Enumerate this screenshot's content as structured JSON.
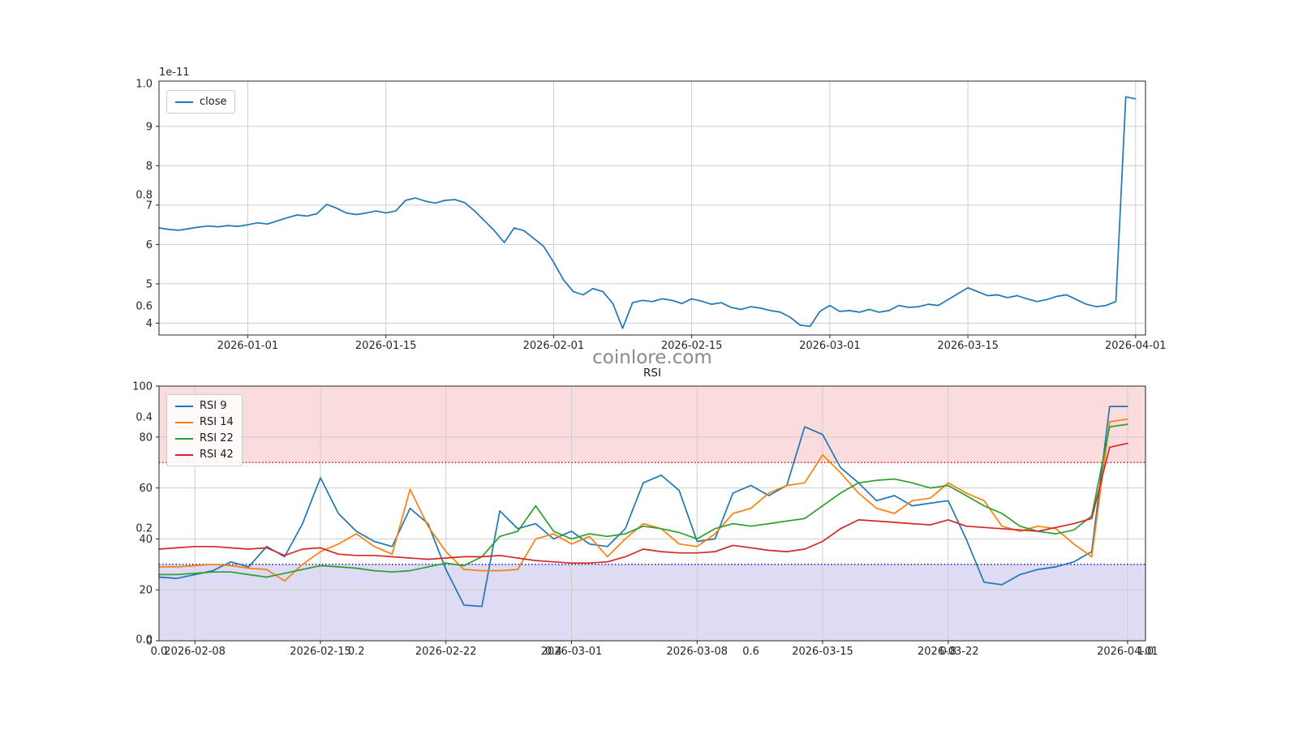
{
  "watermark": "coinlore.com",
  "colors": {
    "blue": "#1f77b4",
    "orange": "#ff7f0e",
    "green": "#2ca02c",
    "red": "#d62728",
    "grid": "#cdcdcd",
    "overbought_band": "#fbdcdc",
    "oversold_band": "#dddcf4",
    "hline_red": "#c00000",
    "hline_blue": "#0000b8"
  },
  "overlay_axis": {
    "y_tick_labels": [
      "0.0",
      "0.2",
      "0.4",
      "0.6",
      "0.8",
      "1.0"
    ],
    "x_tick_labels": [
      "0.0",
      "0.2",
      "0.4",
      "0.6",
      "0.8",
      "1.0"
    ]
  },
  "chart_data": [
    {
      "type": "line",
      "title": "",
      "offset_text": "1e-11",
      "x_range": [
        "2025-12-23",
        "2026-04-02"
      ],
      "y_range": [
        3.7,
        10.15
      ],
      "x_ticks": [
        "2026-01-01",
        "2026-01-15",
        "2026-02-01",
        "2026-02-15",
        "2026-03-01",
        "2026-03-15",
        "2026-04-01"
      ],
      "y_ticks": [
        9,
        8,
        7,
        6,
        5,
        4
      ],
      "ylabel": "",
      "xlabel": "",
      "grid": true,
      "legend_position": "upper left",
      "series": [
        {
          "name": "close",
          "color": "blue",
          "start": "2025-12-23",
          "step_days": 1,
          "unit": "1e-11",
          "values": [
            6.42,
            6.38,
            6.36,
            6.4,
            6.44,
            6.47,
            6.45,
            6.48,
            6.46,
            6.5,
            6.55,
            6.52,
            6.6,
            6.68,
            6.75,
            6.72,
            6.78,
            7.02,
            6.92,
            6.8,
            6.76,
            6.8,
            6.85,
            6.8,
            6.85,
            7.12,
            7.18,
            7.1,
            7.05,
            7.12,
            7.14,
            7.06,
            6.85,
            6.6,
            6.35,
            6.05,
            6.42,
            6.35,
            6.15,
            5.95,
            5.55,
            5.1,
            4.8,
            4.72,
            4.88,
            4.8,
            4.5,
            3.87,
            4.52,
            4.58,
            4.55,
            4.62,
            4.58,
            4.5,
            4.62,
            4.56,
            4.48,
            4.52,
            4.4,
            4.35,
            4.42,
            4.38,
            4.32,
            4.28,
            4.15,
            3.95,
            3.92,
            4.3,
            4.45,
            4.3,
            4.32,
            4.28,
            4.35,
            4.28,
            4.32,
            4.45,
            4.4,
            4.42,
            4.48,
            4.45,
            4.6,
            4.75,
            4.9,
            4.8,
            4.7,
            4.72,
            4.65,
            4.7,
            4.62,
            4.55,
            4.6,
            4.68,
            4.72,
            4.6,
            4.48,
            4.42,
            4.45,
            4.55,
            9.75,
            9.7
          ]
        }
      ]
    },
    {
      "type": "line",
      "title": "RSI",
      "x_range": [
        "2026-02-06",
        "2026-04-02"
      ],
      "y_range": [
        0,
        100
      ],
      "x_ticks": [
        "2026-02-08",
        "2026-02-15",
        "2026-02-22",
        "2026-03-01",
        "2026-03-08",
        "2026-03-15",
        "2026-03-22",
        "2026-04-01"
      ],
      "y_ticks": [
        100,
        80,
        60,
        40,
        20,
        0
      ],
      "grid": true,
      "legend_position": "upper left",
      "bands": [
        {
          "name": "overbought",
          "from": 70,
          "to": 100,
          "color": "overbought_band"
        },
        {
          "name": "oversold",
          "from": 0,
          "to": 30,
          "color": "oversold_band"
        }
      ],
      "hlines": [
        {
          "value": 70,
          "color": "hline_red",
          "style": "dotted"
        },
        {
          "value": 30,
          "color": "hline_blue",
          "style": "dotted"
        }
      ],
      "series": [
        {
          "name": "RSI 9",
          "color": "blue",
          "start": "2026-02-06",
          "step_days": 1,
          "values": [
            25,
            24.5,
            26,
            27.5,
            31,
            29,
            37,
            33,
            46,
            64,
            50,
            43,
            39,
            37,
            52,
            46,
            28,
            14,
            13.5,
            51,
            44,
            46,
            40,
            43,
            38,
            37,
            44,
            62,
            65,
            59,
            39,
            40,
            58,
            61,
            57,
            61,
            84,
            81,
            68,
            62,
            55,
            57,
            53,
            54,
            55,
            40,
            23,
            22,
            26,
            28,
            29,
            31,
            35,
            92,
            92
          ]
        },
        {
          "name": "RSI 14",
          "color": "orange",
          "start": "2026-02-06",
          "step_days": 1,
          "values": [
            29,
            29,
            29.5,
            30,
            29.5,
            28.5,
            28,
            23.5,
            30,
            35,
            38,
            42,
            37,
            34,
            59.5,
            45,
            35,
            28,
            27.5,
            27.5,
            28,
            40,
            42,
            38,
            41,
            33,
            40,
            46,
            44,
            38,
            37,
            42,
            50,
            52,
            58,
            61,
            62,
            73,
            66,
            58,
            52,
            50,
            55,
            56,
            62,
            58,
            55,
            45,
            43,
            45,
            44,
            38,
            33,
            86,
            87
          ]
        },
        {
          "name": "RSI 22",
          "color": "green",
          "start": "2026-02-06",
          "step_days": 1,
          "values": [
            26,
            26,
            26.5,
            27,
            27,
            26,
            25,
            26.5,
            28,
            29.5,
            29,
            28.5,
            27.5,
            27,
            27.5,
            29,
            30.5,
            29.5,
            33,
            41,
            43,
            53,
            43,
            40,
            42,
            41,
            42,
            45,
            44,
            42.5,
            40,
            44,
            46,
            45,
            46,
            47,
            48,
            53,
            58,
            62,
            63,
            63.5,
            62,
            60,
            61,
            57,
            53,
            50,
            45,
            43,
            42,
            43.5,
            49,
            84,
            85
          ]
        },
        {
          "name": "RSI 42",
          "color": "red",
          "start": "2026-02-06",
          "step_days": 1,
          "values": [
            36,
            36.5,
            37,
            37,
            36.5,
            36,
            36.5,
            33.5,
            36,
            36.5,
            34,
            33.5,
            33.5,
            33,
            32.5,
            32,
            32.5,
            33,
            33,
            33.5,
            32.5,
            31.5,
            31,
            30.5,
            30.5,
            31,
            33,
            36,
            35,
            34.5,
            34.5,
            35,
            37.5,
            36.5,
            35.5,
            35,
            36,
            39,
            44,
            47.5,
            47,
            46.5,
            46,
            45.5,
            47.5,
            45,
            44.5,
            44,
            43.5,
            43,
            44.5,
            46,
            48,
            76,
            77.5
          ]
        }
      ]
    }
  ]
}
